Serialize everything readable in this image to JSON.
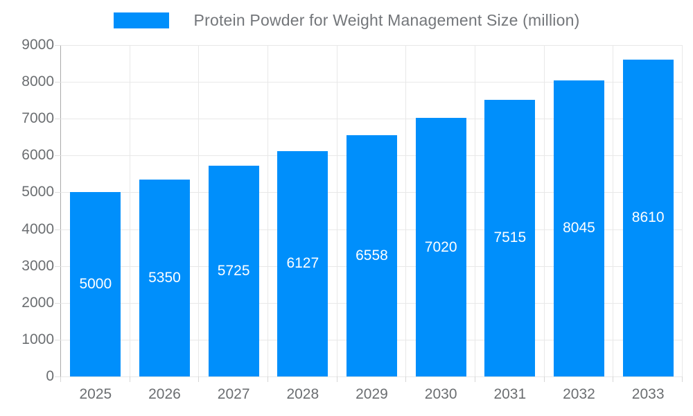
{
  "chart_data": {
    "type": "bar",
    "title": "Protein Powder for Weight Management Size (million)",
    "legend": [
      "Protein Powder for Weight Management Size (million)"
    ],
    "legend_position": "top",
    "categories": [
      "2025",
      "2026",
      "2027",
      "2028",
      "2029",
      "2030",
      "2031",
      "2032",
      "2033"
    ],
    "values": [
      5000,
      5350,
      5725,
      6127,
      6558,
      7020,
      7515,
      8045,
      8610
    ],
    "xlabel": "",
    "ylabel": "",
    "ylim": [
      0,
      9000
    ],
    "ytick_step": 1000,
    "ytick_labels": [
      "0",
      "1000",
      "2000",
      "3000",
      "4000",
      "5000",
      "6000",
      "7000",
      "8000",
      "9000"
    ],
    "grid": true,
    "bar_color": "#008FFB",
    "data_label_color": "#FFFFFF",
    "axis_label_color": "#6B6E71",
    "grid_color": "#E8E8E8",
    "axis_line_color": "#A9A9A9",
    "legend_text_color": "#73767A"
  }
}
